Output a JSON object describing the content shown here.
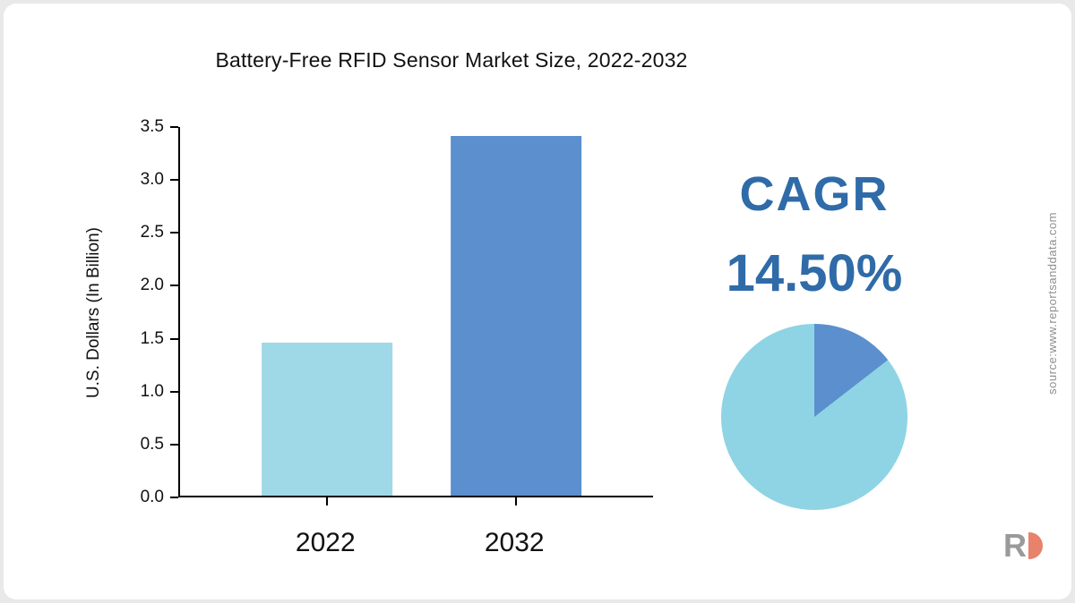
{
  "title": "Battery-Free RFID Sensor Market Size, 2022-2032",
  "chart_data": {
    "type": "bar",
    "categories": [
      "2022",
      "2032"
    ],
    "values": [
      1.45,
      3.4
    ],
    "title": "Battery-Free RFID Sensor Market Size, 2022-2032",
    "xlabel": "",
    "ylabel": "U.S. Dollars (In Billion)",
    "ylim": [
      0,
      3.5
    ],
    "ytick_labels": [
      "0.0",
      "0.5",
      "1.0",
      "1.5",
      "2.0",
      "2.5",
      "3.0",
      "3.5"
    ],
    "bar_colors": [
      "#9fd8e6",
      "#5b8fce"
    ],
    "grid": false,
    "legend": "none"
  },
  "cagr": {
    "label": "CAGR",
    "value": "14.50%",
    "percent": 14.5
  },
  "pie": {
    "type": "pie",
    "slice_percent": 14.5,
    "slice_color": "#5b8fce",
    "body_color": "#8fd4e4",
    "start_angle_deg": 0
  },
  "source": "source:www.reportsanddata.com",
  "colors": {
    "accent_blue": "#2f6ba8",
    "logo_coral": "#e8826b",
    "logo_gray": "#9a9a9a"
  }
}
